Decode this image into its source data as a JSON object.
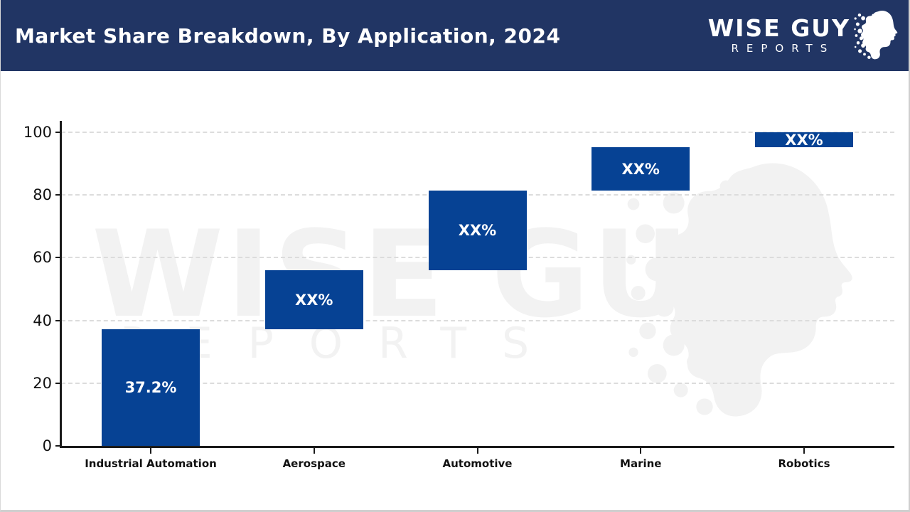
{
  "header": {
    "title": "Market Share Breakdown, By Application, 2024",
    "logo": {
      "name": "WISE GUY",
      "sub": "REPORTS"
    }
  },
  "watermark": {
    "name": "WISE GUY",
    "sub": "REPORTS"
  },
  "chart_data": {
    "type": "bar",
    "variant": "waterfall",
    "title": "Market Share Breakdown, By Application, 2024",
    "categories": [
      "Industrial Automation",
      "Aerospace",
      "Automotive",
      "Marine",
      "Robotics"
    ],
    "bars": [
      {
        "category": "Industrial Automation",
        "start": 0,
        "end": 37.2,
        "label": "37.2%"
      },
      {
        "category": "Aerospace",
        "start": 37.2,
        "end": 55.9,
        "label": "XX%"
      },
      {
        "category": "Automotive",
        "start": 55.9,
        "end": 81.4,
        "label": "XX%"
      },
      {
        "category": "Marine",
        "start": 81.4,
        "end": 95.2,
        "label": "XX%"
      },
      {
        "category": "Robotics",
        "start": 95.2,
        "end": 100,
        "label": "XX%"
      }
    ],
    "xlabel": "",
    "ylabel": "",
    "ylim": [
      0,
      100
    ],
    "yticks": [
      0,
      20,
      40,
      60,
      80,
      100
    ],
    "grid": "horizontal-dashed",
    "legend": "none",
    "bar_color": "#064294",
    "bar_label_color": "#ffffff"
  },
  "colors": {
    "header_bg": "#213564",
    "title_text": "#ffffff",
    "bar": "#064294",
    "gridline": "#dcdcdc",
    "axis": "#1a1a1a",
    "watermark": "#f2f2f2"
  }
}
